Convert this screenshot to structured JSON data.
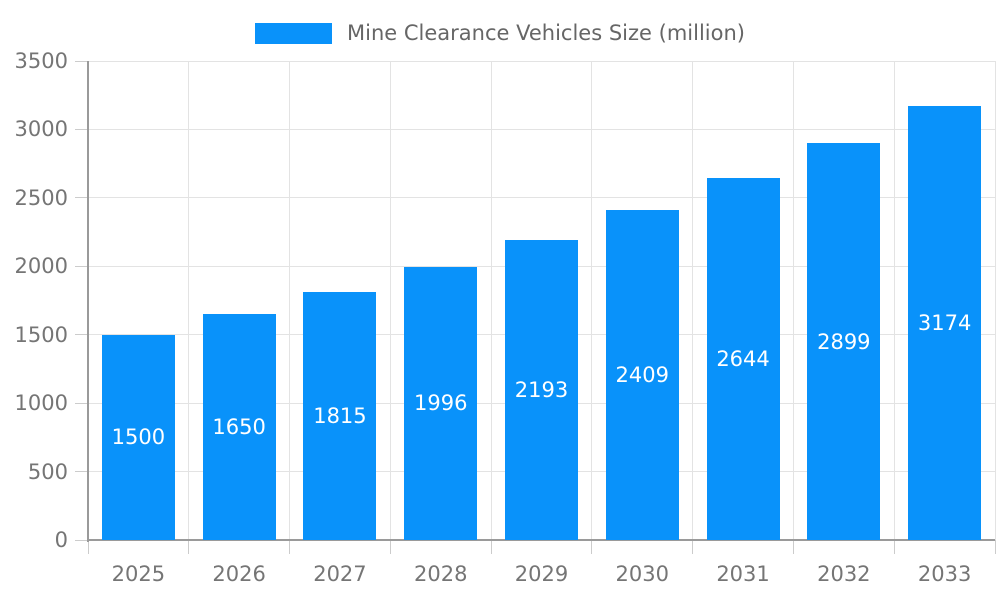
{
  "legend": {
    "label": "Mine Clearance Vehicles Size (million)"
  },
  "chart_data": {
    "type": "bar",
    "title": "Mine Clearance Vehicles Size (million)",
    "categories": [
      "2025",
      "2026",
      "2027",
      "2028",
      "2029",
      "2030",
      "2031",
      "2032",
      "2033"
    ],
    "values": [
      1500,
      1650,
      1815,
      1996,
      2193,
      2409,
      2644,
      2899,
      3174
    ],
    "xlabel": "",
    "ylabel": "",
    "ylim": [
      0,
      3500
    ],
    "ytick_step": 500,
    "ytick_labels": [
      "0",
      "500",
      "1000",
      "1500",
      "2000",
      "2500",
      "3000",
      "3500"
    ],
    "grid": true,
    "legend_position": "top",
    "bar_color": "#0992fa",
    "value_label_color": "#ffffff",
    "axis_text_color": "#757575",
    "legend_text_color": "#666666",
    "grid_color": "#e3e3e3",
    "axis_line_color": "#9a9a9a"
  }
}
